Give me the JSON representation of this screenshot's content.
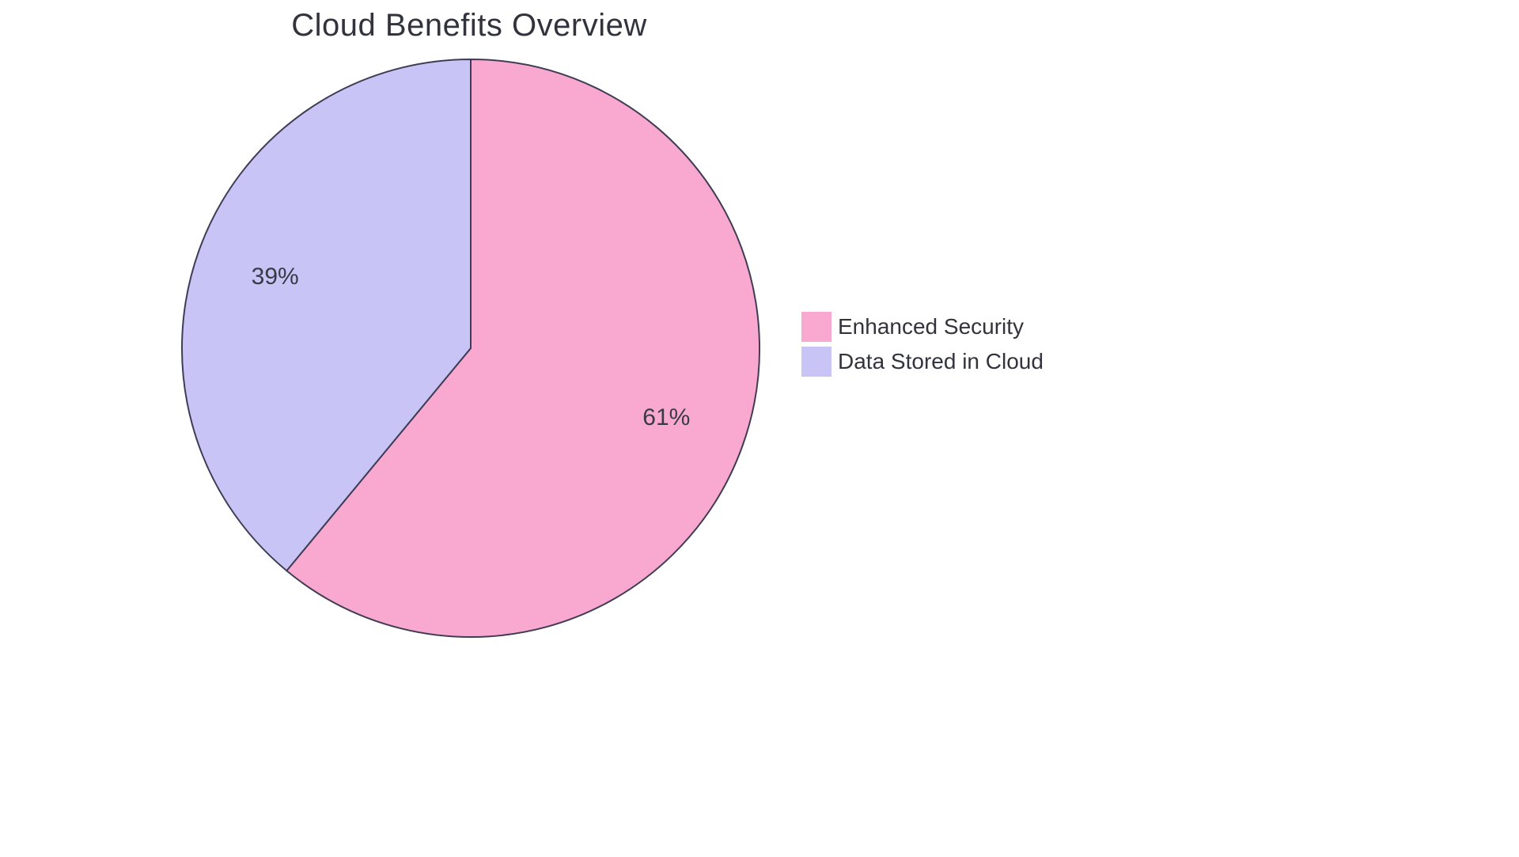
{
  "chart_data": {
    "type": "pie",
    "title": "Cloud Benefits Overview",
    "labels": [
      "Enhanced Security",
      "Data Stored in Cloud"
    ],
    "values": [
      61,
      39
    ],
    "percent_labels": [
      "61%",
      "39%"
    ],
    "colors": [
      "#f9a8d0",
      "#c8c4f5"
    ],
    "slice_stroke_color": "#3f3d56",
    "legend_position": "right",
    "start_angle_deg": -90,
    "direction": "clockwise"
  }
}
